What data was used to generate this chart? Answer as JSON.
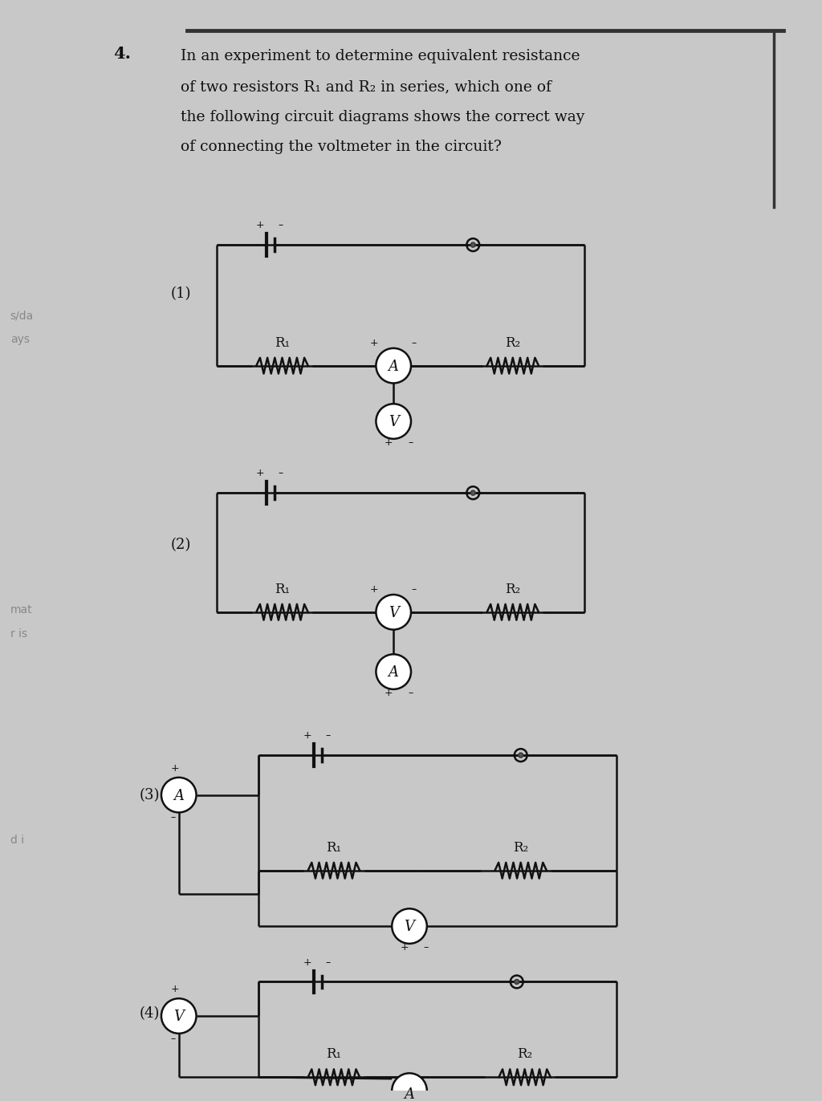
{
  "bg_color": "#c8c8c8",
  "line_color": "#111111",
  "question_number": "4.",
  "question_text": "In an experiment to determine equivalent resistance\nof two resistors R₁ and R₂ in series, which one of\nthe following circuit diagrams shows the correct way\nof connecting the voltmeter in the circuit?",
  "left_margin_texts": [
    "s/da",
    "ays",
    "mat",
    "r is",
    "d i"
  ],
  "diagrams": [
    "(1)",
    "(2)",
    "(3)",
    "(4)"
  ]
}
